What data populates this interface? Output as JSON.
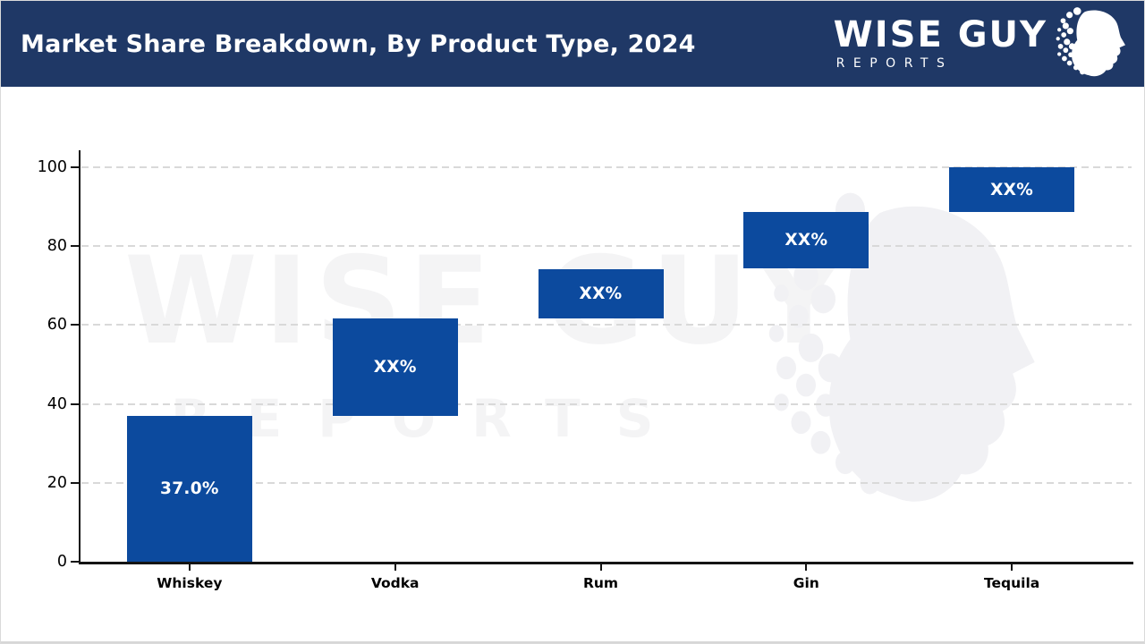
{
  "header": {
    "title": "Market Share Breakdown, By Product Type, 2024",
    "logo": {
      "line1": "WISE GUY",
      "line2": "REPORTS"
    },
    "bg_color": "#1f3866"
  },
  "watermark": {
    "line1": "WISE GUY",
    "line2": "REPORTS"
  },
  "chart_data": {
    "type": "bar",
    "subtype": "waterfall",
    "title": "Market Share Breakdown, By Product Type, 2024",
    "categories": [
      "Whiskey",
      "Vodka",
      "Rum",
      "Gin",
      "Tequila"
    ],
    "series": [
      {
        "name": "Market Share (%)",
        "segments": [
          {
            "category": "Whiskey",
            "start": 0,
            "end": 37,
            "label": "37.0%"
          },
          {
            "category": "Vodka",
            "start": 37,
            "end": 61.6,
            "label": "XX%"
          },
          {
            "category": "Rum",
            "start": 61.6,
            "end": 74.1,
            "label": "XX%"
          },
          {
            "category": "Gin",
            "start": 74.3,
            "end": 88.6,
            "label": "XX%"
          },
          {
            "category": "Tequila",
            "start": 88.6,
            "end": 100,
            "label": "XX%"
          }
        ]
      }
    ],
    "xlabel": "",
    "ylabel": "",
    "ylim": [
      0,
      100
    ],
    "yticks": [
      0,
      20,
      40,
      60,
      80,
      100
    ],
    "grid": true,
    "grid_style": "dashed",
    "legend": "none",
    "bar_color": "#0c4a9e",
    "bar_label_color": "#ffffff"
  }
}
